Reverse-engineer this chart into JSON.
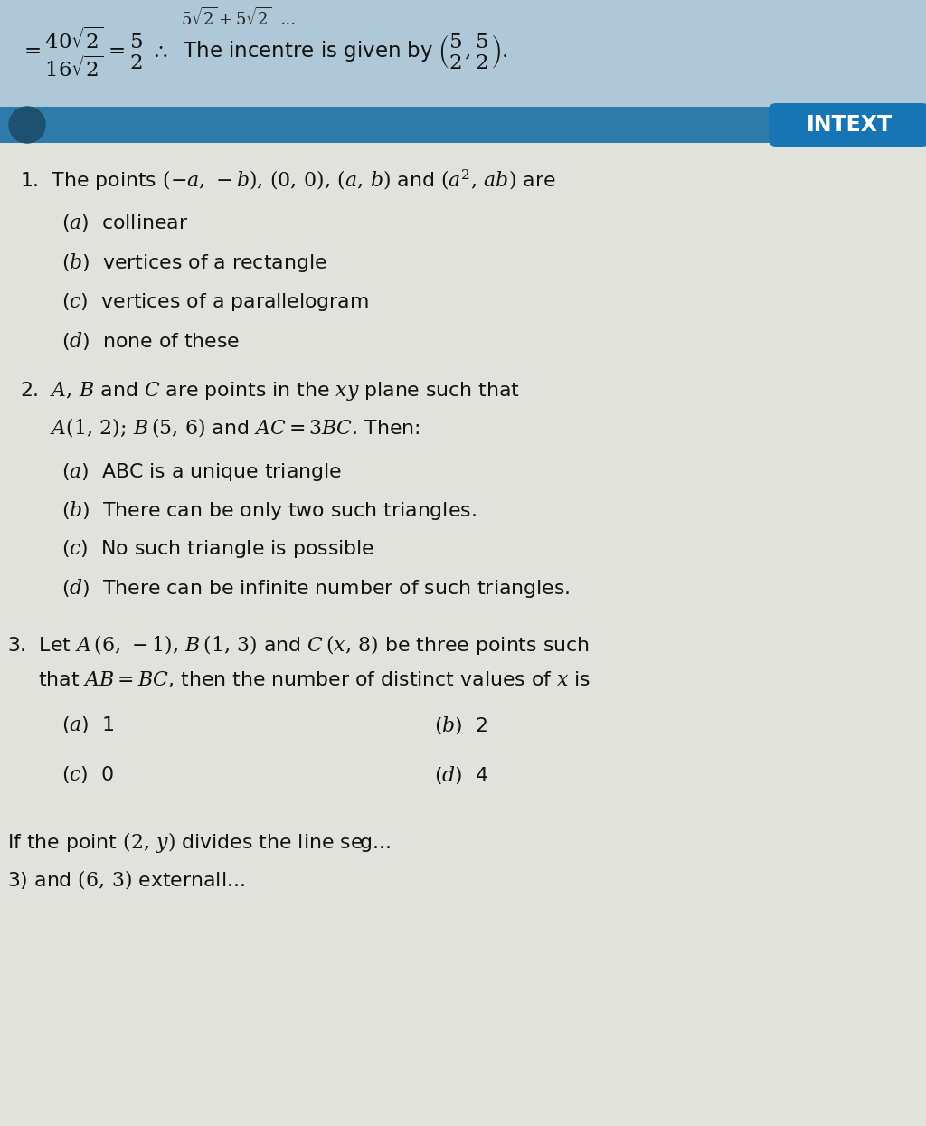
{
  "header_bg": "#b8d8e8",
  "header_top_text": "$5\\sqrt{2} + 5\\sqrt{2}$",
  "header_math": "$= \\dfrac{40\\sqrt{2}}{16\\sqrt{2}} = \\dfrac{5}{2}$  $\\therefore$  The incentre is given by  $\\left(\\dfrac{5}{2},\\,\\dfrac{5}{2}\\right)$.",
  "intext_bar_color": "#3a7faa",
  "intext_badge_color": "#2080c0",
  "intext_label": "INTEXT",
  "bullet_color": "#2a5f8a",
  "page_bg": "#d8d8d4",
  "content_bg": "#e8e8e2",
  "q1_stem": "1.  The points $(-a,\\,-b)$, $(0,\\,0)$, $(a,\\,b)$ and $(a^2,\\,ab)$ are",
  "q1_opts": [
    "($a$)  collinear",
    "($b$)  vertices of a rectangle",
    "($c$)  vertices of a parallelogram",
    "($d$)  none of these"
  ],
  "q2_line1": "2.  $A$, $B$ and $C$ are points in the $xy$ plane such that",
  "q2_line2": "$A(1,\\,2)$; $B\\,(5,\\,6)$ and $AC = 3BC$.  Then:",
  "q2_opts": [
    "($a$)  ABC is a unique triangle",
    "($b$)  There can be only two such triangles.",
    "($c$)  No such triangle is possible",
    "($d$)  There can be infinite number of such triangles."
  ],
  "q3_line1": "3.  Let $A\\,(6,\\,-1)$, $B\\,(1,\\,3)$ and $C\\,(x,\\,8)$ be three points such",
  "q3_line2": "that $AB = BC$, then the number of distinct values of $x$ is",
  "q3_left": [
    "($a$)  1",
    "($c$)  0"
  ],
  "q3_right": [
    "($b$)  2",
    "($d$)  4"
  ],
  "q4_line1": "If the point $(2,\\, y)$ divides the line se  ...",
  "q4_line2": "3) and $(6,\\,3)$ externall  ..."
}
